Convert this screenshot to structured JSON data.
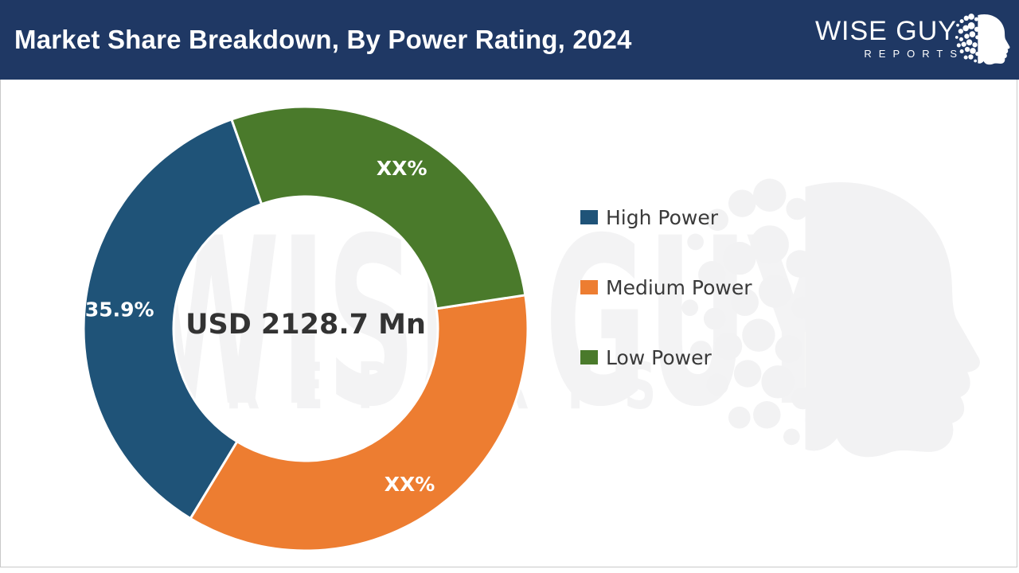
{
  "header": {
    "title": "Market Share Breakdown, By Power Rating, 2024",
    "bg_color": "#1F3864",
    "logo": {
      "line1": "WISE GUY",
      "line2": "REPORTS"
    }
  },
  "watermark": {
    "line1": "WISE GUY",
    "line2": "REPORTS"
  },
  "chart_data": {
    "type": "pie",
    "subtype": "donut",
    "title": "Market Share Breakdown, By Power Rating, 2024",
    "center_label": "USD 2128.7 Mn",
    "start_angle_deg": 109.5,
    "legend_position": "right",
    "segments": [
      {
        "name": "High Power",
        "display_label": "35.9%",
        "value_pct": 35.9,
        "color": "#1F5378"
      },
      {
        "name": "Medium Power",
        "display_label": "XX%",
        "value_pct": 36.1,
        "color": "#ED7D31"
      },
      {
        "name": "Low Power",
        "display_label": "XX%",
        "value_pct": 28.0,
        "color": "#4A7A2B"
      }
    ]
  }
}
